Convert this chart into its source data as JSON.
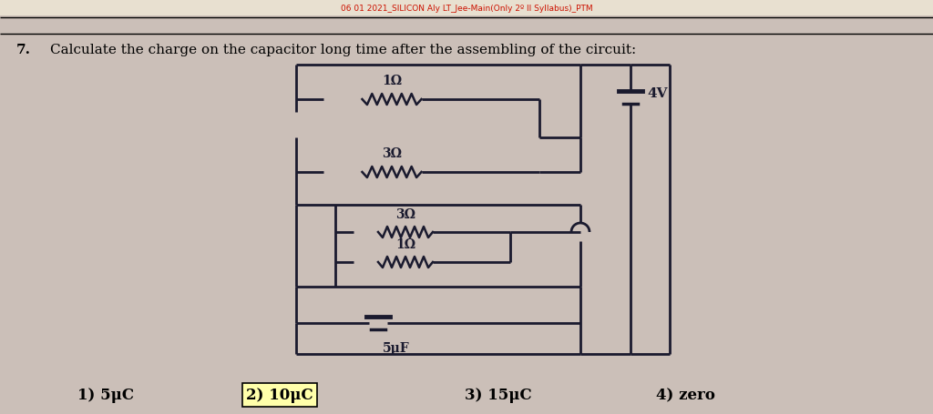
{
  "title_num": "7.",
  "title_text": "Calculate the charge on the capacitor long time after the assembling of the circuit:",
  "header_text": "06 01 2021_SILICON Aly LT_Jee-Main(Only 2º II Syllabus)_PTM",
  "bg_color": "#cbbfb8",
  "circuit_color": "#1a1a2e",
  "answer_options": [
    "1) 5μC",
    "2) 10μC",
    "3) 15μC",
    "4) zero"
  ],
  "answer_highlight": 1,
  "resistor_labels": [
    "1Ω",
    "3Ω",
    "3Ω",
    "1Ω"
  ],
  "capacitor_label": "5μF",
  "voltage_label": "4V"
}
